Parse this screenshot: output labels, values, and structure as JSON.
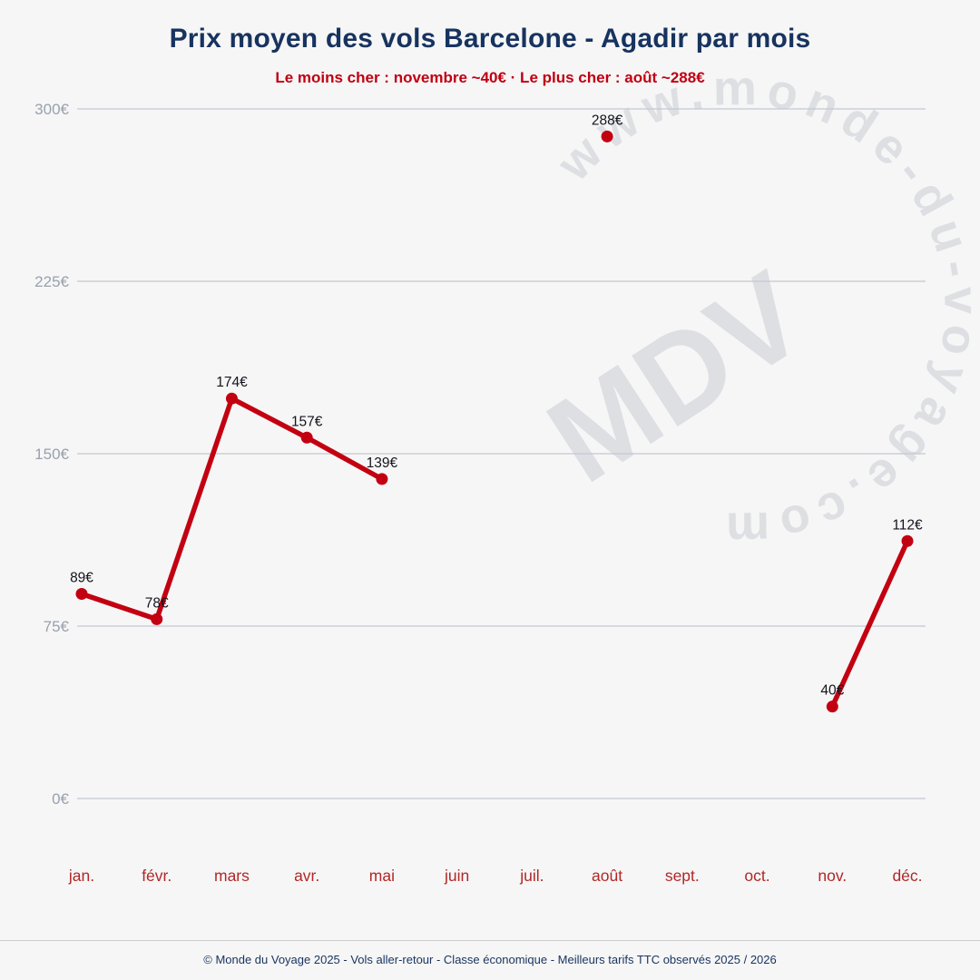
{
  "title": "Prix moyen des vols Barcelone - Agadir par mois",
  "subtitle": "Le moins cher : novembre ~40€ · Le plus cher : août ~288€",
  "footer": "© Monde du Voyage 2025 - Vols aller-retour - Classe économique - Meilleurs tarifs TTC observés 2025 / 2026",
  "watermark": {
    "ring_text": "www.monde-du-voyage.com",
    "center_text": "MDV"
  },
  "colors": {
    "background": "#f6f6f6",
    "title": "#17335f",
    "subtitle": "#c00012",
    "accent": "#c30011",
    "grid": "#c2c8d4",
    "axis_label": "#98a1ae",
    "month_label": "#b02828",
    "point_label": "#14141e",
    "watermark": "#dcdde2",
    "footer_text": "#17335f",
    "footer_border": "#cccccc"
  },
  "chart_data": {
    "type": "line",
    "title": "Prix moyen des vols Barcelone - Agadir par mois",
    "categories": [
      "jan.",
      "févr.",
      "mars",
      "avr.",
      "mai",
      "juin",
      "juil.",
      "août",
      "sept.",
      "oct.",
      "nov.",
      "déc."
    ],
    "values": [
      89,
      78,
      174,
      157,
      139,
      null,
      null,
      288,
      null,
      null,
      40,
      112
    ],
    "labels": [
      "89€",
      "78€",
      "174€",
      "157€",
      "139€",
      null,
      null,
      "288€",
      null,
      null,
      "40€",
      "112€"
    ],
    "ylim": [
      0,
      300
    ],
    "yticks": [
      0,
      75,
      150,
      225,
      300
    ],
    "ytick_labels": [
      "0€",
      "75€",
      "150€",
      "225€",
      "300€"
    ],
    "grid": true,
    "legend": "none",
    "unit": "€",
    "cheapest": {
      "month": "novembre",
      "value": 40
    },
    "most_expensive": {
      "month": "août",
      "value": 288
    }
  }
}
